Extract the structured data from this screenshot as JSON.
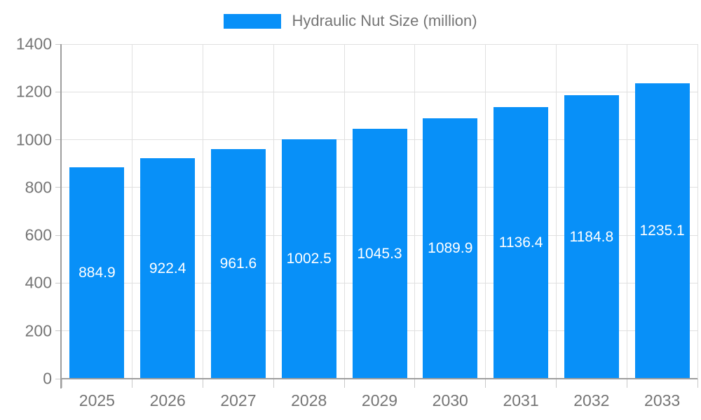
{
  "chart_data": {
    "type": "bar",
    "title": "Hydraulic Nut Size (million)",
    "categories": [
      "2025",
      "2026",
      "2027",
      "2028",
      "2029",
      "2030",
      "2031",
      "2032",
      "2033"
    ],
    "values": [
      884.9,
      922.4,
      961.6,
      1002.5,
      1045.3,
      1089.9,
      1136.4,
      1184.8,
      1235.1
    ],
    "value_labels": [
      "884.9",
      "922.4",
      "961.6",
      "1002.5",
      "1045.3",
      "1089.9",
      "1136.4",
      "1184.8",
      "1235.1"
    ],
    "xlabel": "",
    "ylabel": "",
    "ylim": [
      0,
      1400
    ],
    "yticks": [
      0,
      200,
      400,
      600,
      800,
      1000,
      1200,
      1400
    ],
    "grid": true,
    "legend_position": "top-center",
    "colors": {
      "bar": "#0890f8",
      "grid": "#e0e0e0",
      "axis": "#9e9e9e",
      "tick": "#c9c9c9",
      "tick_text": "#757575",
      "value_text": "#ffffff",
      "background": "#ffffff"
    }
  }
}
